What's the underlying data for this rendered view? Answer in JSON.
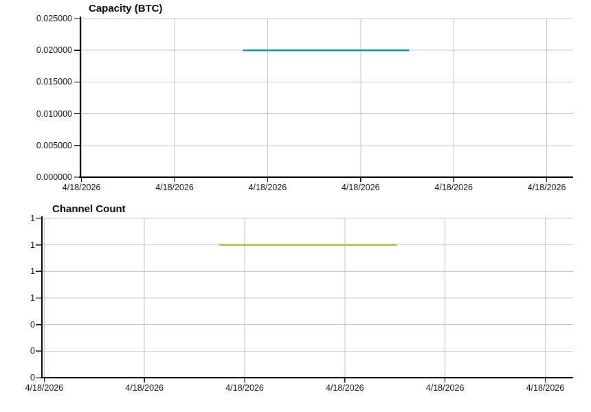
{
  "page": {
    "background_color": "#ffffff"
  },
  "chart_data": [
    {
      "type": "line",
      "title": "Capacity (BTC)",
      "ylim": [
        0,
        0.025
      ],
      "y_tick_labels": [
        "0.025000",
        "0.020000",
        "0.015000",
        "0.010000",
        "0.005000",
        "0.000000"
      ],
      "x_tick_labels": [
        "4/18/2026",
        "4/18/2026",
        "4/18/2026",
        "4/18/2026",
        "4/18/2026",
        "4/18/2026"
      ],
      "grid": true,
      "legend": "none",
      "series": [
        {
          "name": "Capacity (BTC)",
          "color": "#17939E",
          "y_value": 0.02,
          "x_start_frac": 0.33,
          "x_end_frac": 0.667
        }
      ]
    },
    {
      "type": "line",
      "title": "Channel Count",
      "ylim": [
        0,
        1.2
      ],
      "y_tick_labels": [
        "1",
        "1",
        "1",
        "1",
        "0",
        "0",
        "0"
      ],
      "x_tick_labels": [
        "4/18/2026",
        "4/18/2026",
        "4/18/2026",
        "4/18/2026",
        "4/18/2026",
        "4/18/2026"
      ],
      "grid": true,
      "legend": "none",
      "series": [
        {
          "name": "Channel Count",
          "color": "#9CC82F",
          "y_value": 1,
          "x_start_frac": 0.334,
          "x_end_frac": 0.668
        }
      ]
    }
  ],
  "style": {
    "grid_color": "#C5C5C5",
    "axis_color": "#000000",
    "label_color": "#111111",
    "title_color": "#000000"
  }
}
